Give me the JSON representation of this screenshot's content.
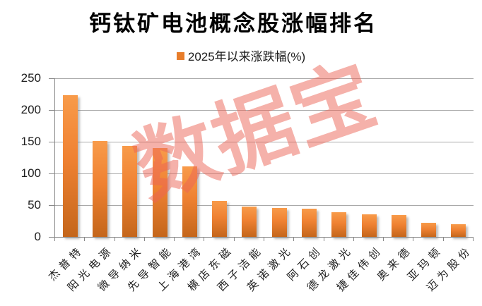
{
  "chart_data": {
    "type": "bar",
    "title": "钙钛矿电池概念股涨幅排名",
    "legend_label": "2025年以来涨跌幅(%)",
    "watermark": "数据宝",
    "categories": [
      "杰普特",
      "阳光电源",
      "微导纳米",
      "先导智能",
      "上海港湾",
      "横店东磁",
      "西子洁能",
      "英诺激光",
      "阿石创",
      "德龙激光",
      "捷佳伟创",
      "奥来德",
      "亚玛顿",
      "迈为股份"
    ],
    "values": [
      223,
      151,
      143,
      140,
      111,
      57,
      48,
      46,
      45,
      39,
      36,
      35,
      22,
      20
    ],
    "xlabel": "",
    "ylabel": "",
    "ylim": [
      0,
      250
    ],
    "yticks": [
      0,
      50,
      100,
      150,
      200,
      250
    ],
    "grid": true,
    "legend_position": "top",
    "x_label_rotation_deg": 45,
    "colors": {
      "bar_top": "#F89B4A",
      "bar_bottom": "#C4661B",
      "legend_swatch": "#E87D2A",
      "watermark": "rgba(235,100,85,0.5)",
      "gridline": "#A9A9A9",
      "axis": "#898989",
      "text": "#1D1D1D"
    }
  }
}
